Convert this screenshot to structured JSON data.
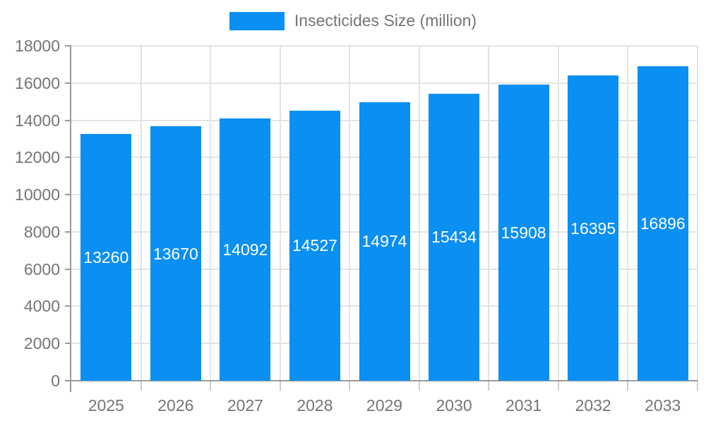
{
  "chart_data": {
    "type": "bar",
    "title": "",
    "xlabel": "",
    "ylabel": "",
    "legend": {
      "label": "Insecticides Size (million)",
      "position": "top"
    },
    "categories": [
      "2025",
      "2026",
      "2027",
      "2028",
      "2029",
      "2030",
      "2031",
      "2032",
      "2033"
    ],
    "series": [
      {
        "name": "Insecticides Size (million)",
        "values": [
          13260,
          13670,
          14092,
          14527,
          14974,
          15434,
          15908,
          16395,
          16896
        ]
      }
    ],
    "ylim": [
      0,
      18000
    ],
    "yticks": [
      0,
      2000,
      4000,
      6000,
      8000,
      10000,
      12000,
      14000,
      16000,
      18000
    ],
    "grid": true,
    "bar_value_labels": "inside-middle",
    "colors": {
      "bar": "#0a8ff2",
      "bar_label": "#ffffff",
      "axis_text": "#757575",
      "grid_line": "#e3e3e3",
      "axis_line": "#9a9a9a",
      "minor_tick": "#cccccc",
      "background": "#ffffff"
    }
  }
}
